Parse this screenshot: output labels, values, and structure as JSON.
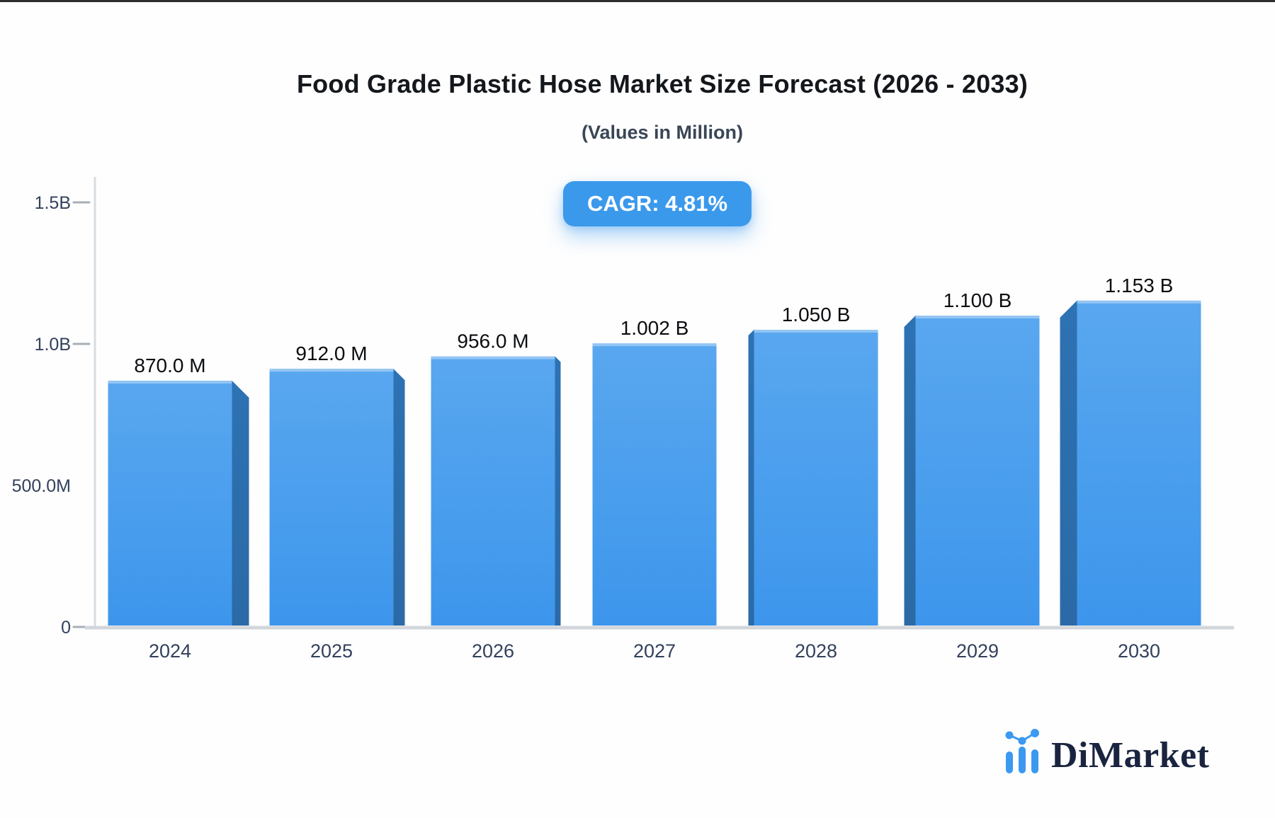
{
  "page": {
    "title": "Food Grade Plastic Hose Market Size Forecast (2026 - 2033)",
    "subtitle": "(Values in Million)",
    "cagr_label": "CAGR: 4.81%"
  },
  "chart_data": {
    "type": "bar",
    "style": "3d-perspective-bars",
    "title": "Food Grade Plastic Hose Market Size Forecast (2026 - 2033)",
    "subtitle": "(Values in Million)",
    "cagr_percent": 4.81,
    "categories": [
      "2024",
      "2025",
      "2026",
      "2027",
      "2028",
      "2029",
      "2030"
    ],
    "values_millions": [
      870,
      912,
      956,
      1002,
      1050,
      1100,
      1153
    ],
    "bar_labels": [
      "870.0 M",
      "912.0 M",
      "956.0 M",
      "1.002 B",
      "1.050 B",
      "1.100 B",
      "1.153 B"
    ],
    "y_axis": {
      "range_millions": [
        0,
        1500
      ],
      "ticks": [
        {
          "label": "1.5B",
          "value": 1500,
          "dash": true
        },
        {
          "label": "1.0B",
          "value": 1000,
          "dash": true
        },
        {
          "label": "500.0M",
          "value": 500,
          "dash": false
        },
        {
          "label": "0",
          "value": 0,
          "dash": true
        }
      ]
    },
    "grid": false,
    "legend": false,
    "colors": {
      "bar_face_top": "#59A7EF",
      "bar_face_bottom": "#3D96EC",
      "bar_side": "#2D72B3",
      "bar_top_highlight": "#ffffff",
      "axis_line": "#d8dce1",
      "baseline": "#d3d7db",
      "tick_dash": "#a6aeb8",
      "value_label": "#0b0d10",
      "axis_label": "#33415c",
      "badge": "#3b99ec"
    }
  },
  "logo": {
    "text": "DiMarket",
    "icon": "mini-bar-chart-icon",
    "icon_color": "#3b99f0",
    "text_color": "#1a2440"
  }
}
